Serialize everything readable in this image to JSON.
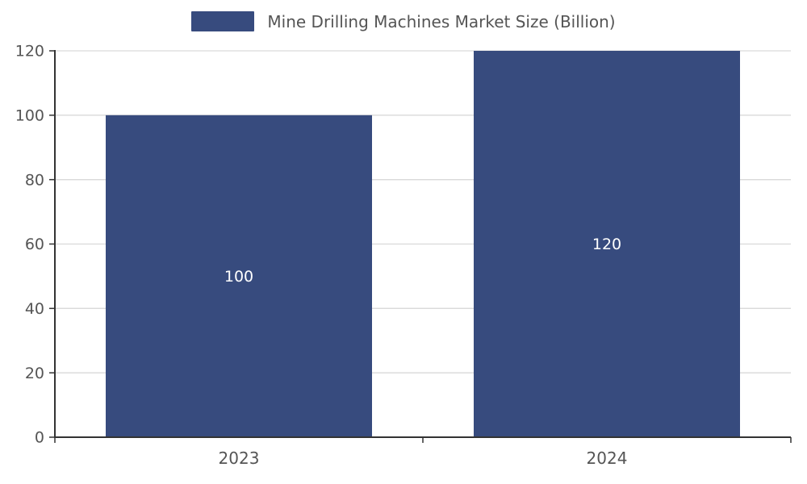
{
  "chart_data": {
    "type": "bar",
    "title": "Mine Drilling Machines Market Size (Billion)",
    "categories": [
      "2023",
      "2024"
    ],
    "values": [
      100,
      120
    ],
    "value_labels": [
      "100",
      "120"
    ],
    "xlabel": "",
    "ylabel": "",
    "ylim": [
      0,
      120
    ],
    "yticks": [
      0,
      20,
      40,
      60,
      80,
      100,
      120
    ],
    "grid": true,
    "legend_position": "top-center",
    "colors": {
      "bar": "#374B7E",
      "value_label": "#ffffff",
      "axis": "#333333",
      "tick_label": "#555555",
      "gridline": "#d9d9d9",
      "background": "#ffffff"
    }
  }
}
